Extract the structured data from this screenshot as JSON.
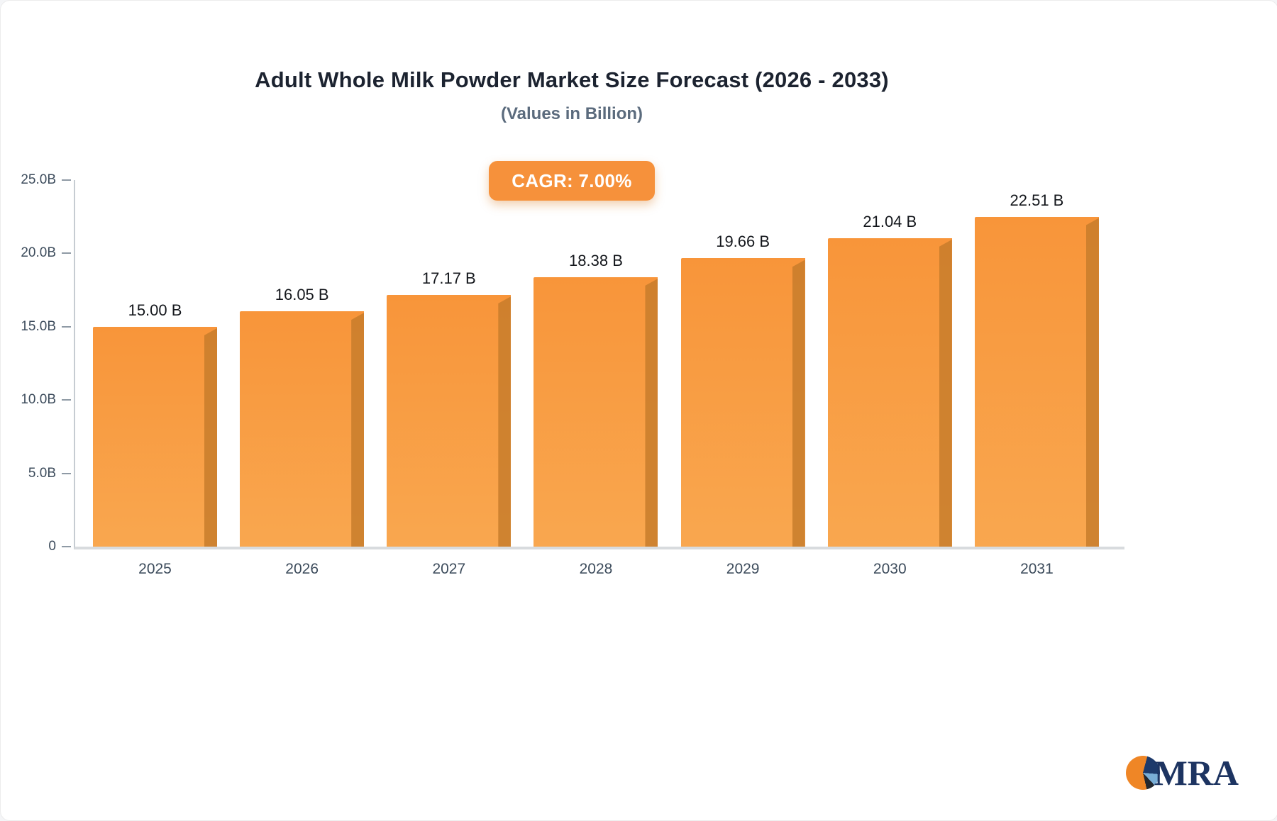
{
  "header": {
    "title": "Adult Whole Milk Powder Market Size Forecast (2026 - 2033)",
    "subtitle": "(Values in Billion)"
  },
  "badge": {
    "label": "CAGR: 7.00%",
    "bg_color": "#F6913B"
  },
  "chart_data": {
    "type": "bar",
    "title": "Adult Whole Milk Powder Market Size Forecast (2026 - 2033)",
    "subtitle": "(Values in Billion)",
    "annotation": "CAGR: 7.00%",
    "categories": [
      "2025",
      "2026",
      "2027",
      "2028",
      "2029",
      "2030",
      "2031"
    ],
    "values": [
      15.0,
      16.05,
      17.17,
      18.38,
      19.66,
      21.04,
      22.51
    ],
    "value_labels": [
      "15.00 B",
      "16.05 B",
      "17.17 B",
      "18.38 B",
      "19.66 B",
      "21.04 B",
      "22.51 B"
    ],
    "ylim": [
      0,
      25
    ],
    "ytick_labels": [
      "25.0B",
      "20.0B",
      "15.0B",
      "10.0B",
      "5.0B",
      "0"
    ],
    "xlabel": "",
    "ylabel": "",
    "grid": false,
    "legend": false,
    "bar_color": "#F8993E",
    "bar_side_color": "#C87C2B"
  },
  "logo": {
    "text": "MRA"
  }
}
